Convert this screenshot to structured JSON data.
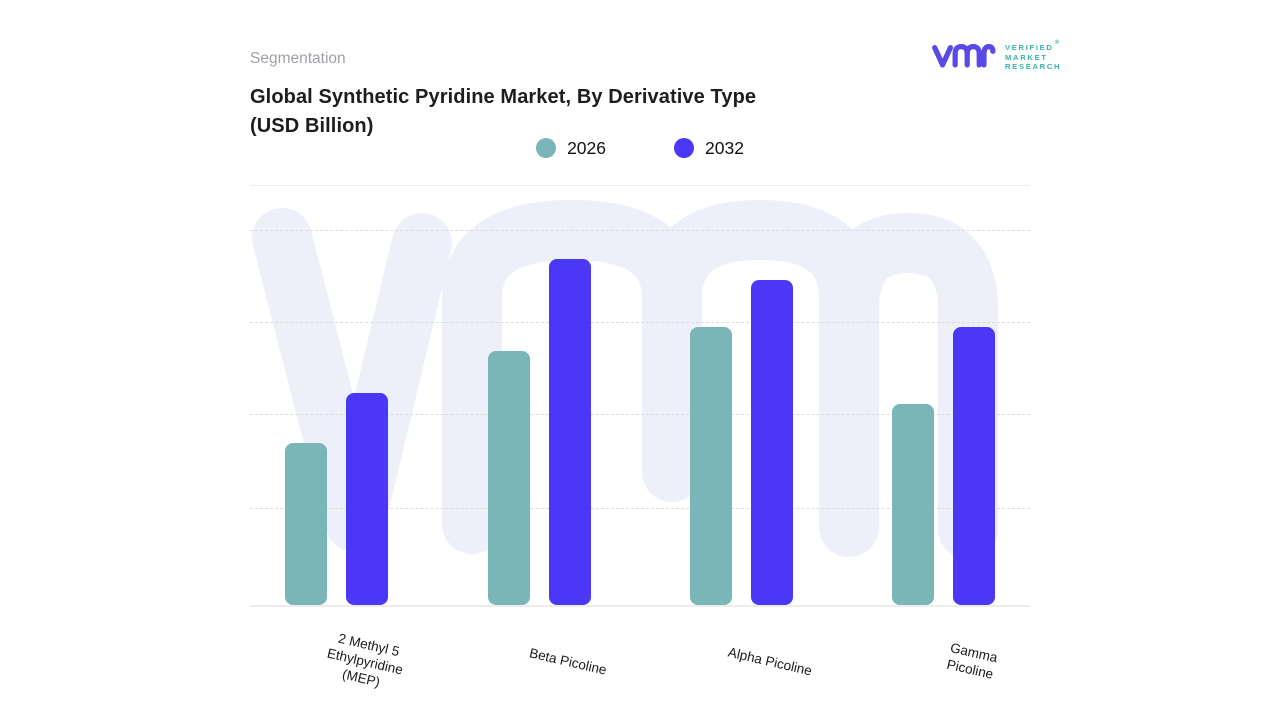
{
  "header": {
    "eyebrow": "Segmentation",
    "title_line1": "Global Synthetic Pyridine Market, By Derivative Type",
    "title_line2": "(USD Billion)"
  },
  "logo": {
    "lines": [
      "VERIFIED",
      "MARKET",
      "RESEARCH"
    ],
    "reg": "®",
    "mark_color": "#5a49e6",
    "text_color": "#38b2ab"
  },
  "watermark": {
    "name": "vmr-monogram-watermark",
    "color": "#edeff9"
  },
  "chart_data": {
    "type": "bar",
    "title": "Global Synthetic Pyridine Market, By Derivative Type (USD Billion)",
    "xlabel": "",
    "ylabel": "USD Billion",
    "categories": [
      "2 Methyl 5 Ethylpyridine (MEP)",
      "Beta Picoline",
      "Alpha Picoline",
      "Gamma Picoline"
    ],
    "category_lines": [
      [
        "2 Methyl 5",
        "Ethylpyridine",
        "(MEP)"
      ],
      [
        "Beta Picoline"
      ],
      [
        "Alpha Picoline"
      ],
      [
        "Gamma",
        "Picoline"
      ]
    ],
    "series": [
      {
        "name": "2026",
        "color": "#7ab5b8",
        "values": [
          1.73,
          2.71,
          2.97,
          2.14
        ]
      },
      {
        "name": "2032",
        "color": "#4a38f6",
        "values": [
          2.26,
          3.69,
          3.47,
          2.97
        ]
      }
    ],
    "value_units": "relative (value axis not labeled in source image)",
    "ylim": [
      0,
      4.2
    ],
    "grid": "4 horizontal dashed gridlines, unlabeled",
    "legend_position": "top-center",
    "bar_corner_radius": 8,
    "gridline_color": "#dcdcdc",
    "baseline_color": "#ededed"
  }
}
